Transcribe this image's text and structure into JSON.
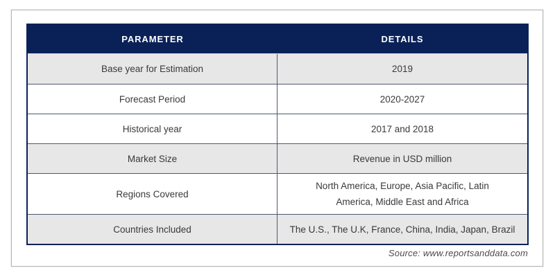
{
  "colors": {
    "header_navy": "#0a2158",
    "shaded_row_gray": "#e7e7e7",
    "plain_row_white": "#ffffff",
    "row_border": "#4a5670",
    "card_border": "#b9b9b9",
    "cell_text": "#393939",
    "header_text": "#ffffff",
    "source_text": "#4a4a4a"
  },
  "table": {
    "columns": [
      "PARAMETER",
      "DETAILS"
    ],
    "rows": [
      {
        "parameter": "Base year for Estimation",
        "details": "2019"
      },
      {
        "parameter": "Forecast Period",
        "details": "2020-2027"
      },
      {
        "parameter": "Historical year",
        "details": "2017 and 2018"
      },
      {
        "parameter": "Market Size",
        "details": "Revenue in USD million"
      },
      {
        "parameter": "Regions Covered",
        "details": "North America, Europe, Asia Pacific, Latin America, Middle East and Africa"
      },
      {
        "parameter": "Countries Included",
        "details": "The U.S., The  U.K, France, China, India, Japan, Brazil"
      }
    ]
  },
  "source": {
    "label": "Source: www.reportsanddata.com"
  }
}
